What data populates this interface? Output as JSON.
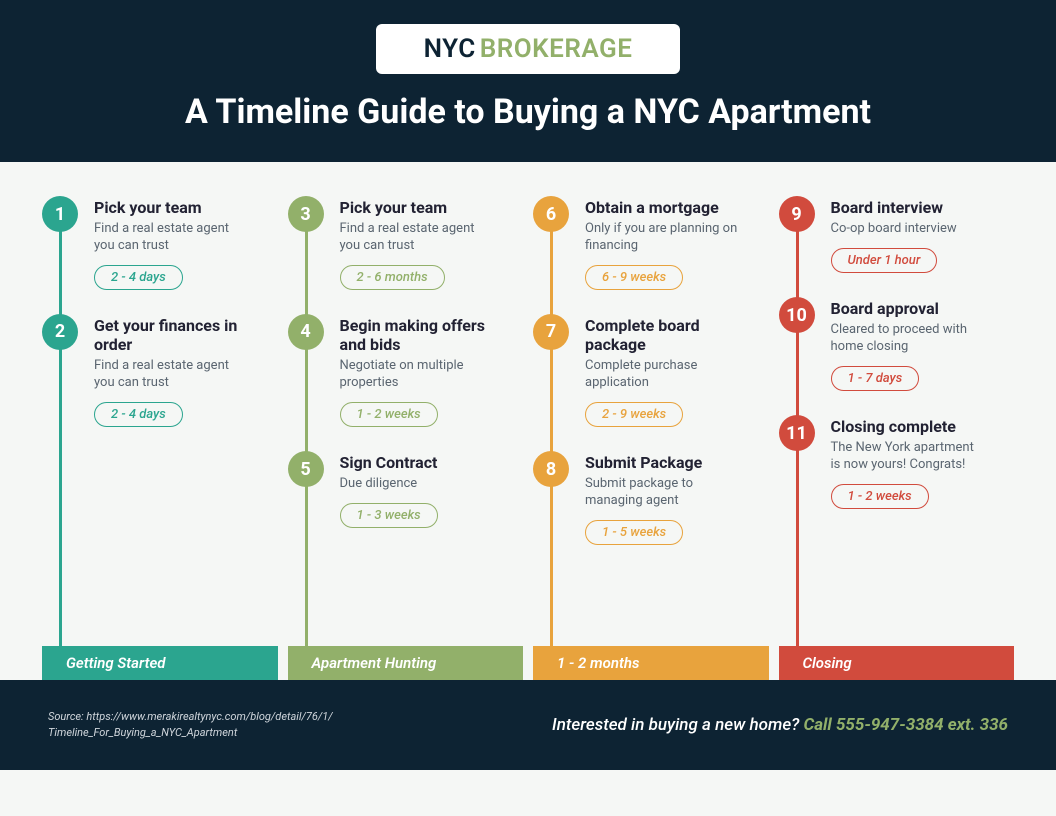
{
  "header": {
    "logo_dark": "NYC",
    "logo_light": "BROKERAGE",
    "title": "A Timeline Guide to Buying a NYC Apartment",
    "bg_color": "#0d2333",
    "logo_light_color": "#92b06a"
  },
  "columns": [
    {
      "label": "Getting Started",
      "color": "#2ba58f",
      "pill_color": "#2ba58f",
      "steps": [
        {
          "num": "1",
          "title": "Pick your team",
          "desc": "Find a real estate agent you can trust",
          "time": "2 - 4 days"
        },
        {
          "num": "2",
          "title": "Get your finances in order",
          "desc": "Find a real estate agent you can trust",
          "time": "2 - 4 days"
        }
      ]
    },
    {
      "label": "Apartment Hunting",
      "color": "#92b06a",
      "pill_color": "#92b06a",
      "steps": [
        {
          "num": "3",
          "title": "Pick your team",
          "desc": "Find a real estate agent you can trust",
          "time": "2 - 6 months"
        },
        {
          "num": "4",
          "title": "Begin making offers and bids",
          "desc": "Negotiate on multiple properties",
          "time": "1 - 2 weeks"
        },
        {
          "num": "5",
          "title": "Sign Contract",
          "desc": "Due diligence",
          "time": "1 - 3 weeks"
        }
      ]
    },
    {
      "label": "1 - 2 months",
      "color": "#e8a33d",
      "pill_color": "#e8a33d",
      "steps": [
        {
          "num": "6",
          "title": "Obtain a mortgage",
          "desc": "Only if you are planning on financing",
          "time": "6 - 9 weeks"
        },
        {
          "num": "7",
          "title": "Complete board package",
          "desc": "Complete purchase application",
          "time": "2 - 9 weeks"
        },
        {
          "num": "8",
          "title": "Submit Package",
          "desc": "Submit package to managing agent",
          "time": "1 - 5 weeks"
        }
      ]
    },
    {
      "label": "Closing",
      "color": "#d14b3d",
      "pill_color": "#d14b3d",
      "steps": [
        {
          "num": "9",
          "title": "Board interview",
          "desc": "Co-op board interview",
          "time": "Under 1 hour"
        },
        {
          "num": "10",
          "title": "Board approval",
          "desc": "Cleared to proceed with home closing",
          "time": "1 - 7 days"
        },
        {
          "num": "11",
          "title": "Closing complete",
          "desc": "The New York apartment is now yours! Congrats!",
          "time": "1 - 2 weeks"
        }
      ]
    }
  ],
  "footer": {
    "source_line1": "Source: https://www.merakirealtynyc.com/blog/detail/76/1/",
    "source_line2": "Timeline_For_Buying_a_NYC_Apartment",
    "cta_text": "Interested in buying a new home? ",
    "cta_phone": "Call 555-947-3384 ext. 336",
    "bg_color": "#0d2333"
  },
  "style": {
    "page_bg": "#f5f7f5",
    "step_title_color": "#223344",
    "step_desc_color": "#5a6570"
  }
}
